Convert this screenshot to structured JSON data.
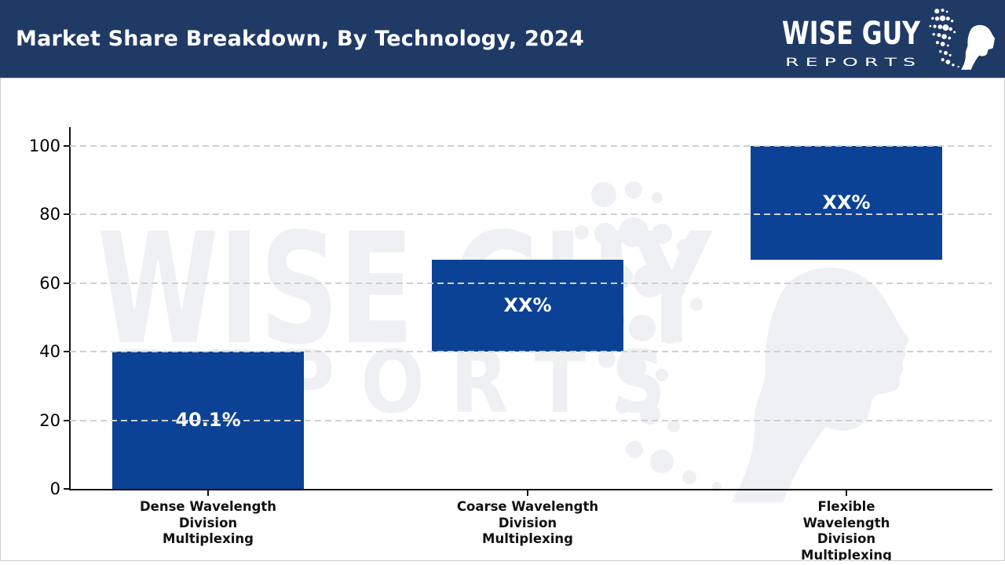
{
  "header": {
    "title": "Market Share Breakdown, By Technology, 2024",
    "logo": {
      "line1": "WISE GUY",
      "line2": "R E P O R T S"
    }
  },
  "watermark": {
    "line1": "WISE GUY",
    "line2": "R E P O R T S"
  },
  "chart_data": {
    "type": "bar",
    "subtype": "floating-segmented-breakdown",
    "title": "Market Share Breakdown, By Technology, 2024",
    "xlabel": "",
    "ylabel": "",
    "ylim": [
      0,
      105
    ],
    "yticks": [
      0,
      20,
      40,
      60,
      80,
      100
    ],
    "grid": "horizontal-dashed-over-bars",
    "legend": "none",
    "categories": [
      "Dense Wavelength Division Multiplexing",
      "Coarse Wavelength Division Multiplexing",
      "Flexible Wavelength Division Multiplexing"
    ],
    "bars": [
      {
        "category_lines": [
          "Dense Wavelength",
          "Division",
          "Multiplexing"
        ],
        "start": 0,
        "end": 40.1,
        "value_label": "40.1%"
      },
      {
        "category_lines": [
          "Coarse Wavelength",
          "Division",
          "Multiplexing"
        ],
        "start": 40.1,
        "end": 66.7,
        "value_label": "XX%"
      },
      {
        "category_lines": [
          "Flexible",
          "Wavelength",
          "Division",
          "Multiplexing"
        ],
        "start": 66.7,
        "end": 100,
        "value_label": "XX%"
      }
    ]
  },
  "colors": {
    "header_bg": "#203a66",
    "bar": "#0b4295",
    "gridline": "#d0d0d0",
    "axis": "#111111",
    "watermark": "#eff0f3",
    "card_border": "#cfcfcf",
    "value_label": "#ffffff"
  }
}
